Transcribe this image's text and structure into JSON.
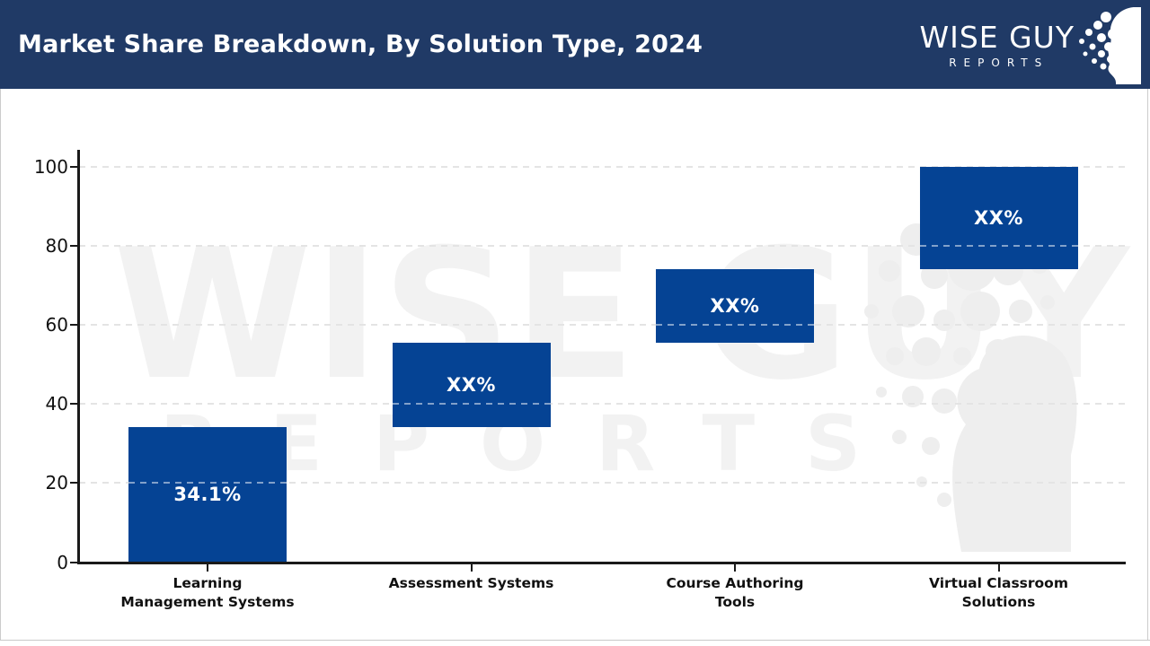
{
  "header": {
    "title": "Market Share Breakdown, By Solution Type, 2024",
    "logo_line1": "WISE GUY",
    "logo_line2": "REPORTS"
  },
  "watermark": {
    "line1": "WISE GUY",
    "line2": "REPORTS"
  },
  "colors": {
    "header_bg": "#203a66",
    "bar": "#054394",
    "bar_label_text": "#ffffff",
    "axis": "#1a1a1a",
    "gridline": "#e4e4e4",
    "watermark": "#f2f2f2"
  },
  "chart_data": {
    "type": "bar",
    "subtype": "waterfall",
    "title": "Market Share Breakdown, By Solution Type, 2024",
    "categories": [
      "Learning Management Systems",
      "Assessment Systems",
      "Course Authoring Tools",
      "Virtual Classroom Solutions"
    ],
    "category_lines": [
      [
        "Learning",
        "Management Systems"
      ],
      [
        "Assessment Systems"
      ],
      [
        "Course Authoring",
        "Tools"
      ],
      [
        "Virtual Classroom",
        "Solutions"
      ]
    ],
    "bars": [
      {
        "category": "Learning Management Systems",
        "label": "34.1%",
        "start": 0,
        "end": 34.1,
        "value": 34.1
      },
      {
        "category": "Assessment Systems",
        "label": "XX%",
        "start": 34.1,
        "end": 55.4,
        "value": 21.3
      },
      {
        "category": "Course Authoring Tools",
        "label": "XX%",
        "start": 55.4,
        "end": 74.2,
        "value": 18.8
      },
      {
        "category": "Virtual Classroom Solutions",
        "label": "XX%",
        "start": 74.2,
        "end": 100,
        "value": 25.8
      }
    ],
    "xlabel": "",
    "ylabel": "",
    "y_ticks": [
      0,
      20,
      40,
      60,
      80,
      100
    ],
    "ylim": [
      0,
      104
    ],
    "grid": "horizontal-dashed",
    "legend": "none"
  }
}
